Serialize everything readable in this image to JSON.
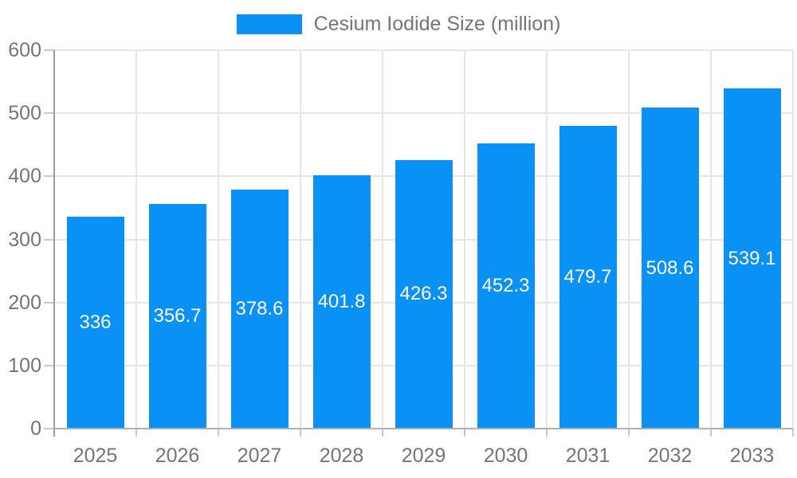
{
  "chart_data": {
    "type": "bar",
    "title": "",
    "xlabel": "",
    "ylabel": "",
    "categories": [
      "2025",
      "2026",
      "2027",
      "2028",
      "2029",
      "2030",
      "2031",
      "2032",
      "2033"
    ],
    "series": [
      {
        "name": "Cesium Iodide Size (million)",
        "values": [
          336,
          356.7,
          378.6,
          401.8,
          426.3,
          452.3,
          479.7,
          508.6,
          539.1
        ],
        "value_labels": [
          "336",
          "356.7",
          "378.6",
          "401.8",
          "426.3",
          "452.3",
          "479.7",
          "508.6",
          "539.1"
        ]
      }
    ],
    "ylim": [
      0,
      600
    ],
    "yticks": [
      0,
      100,
      200,
      300,
      400,
      500,
      600
    ],
    "ytick_labels": [
      "0",
      "100",
      "200",
      "300",
      "400",
      "500",
      "600"
    ],
    "grid": true,
    "legend_position": "top-center",
    "value_label_position": "inside-center",
    "colors": {
      "bar": "#0991f5",
      "bar_label_text": "#ffffff",
      "axis_text": "#757575",
      "gridline": "#e6e6e6",
      "y_axis_line": "#9e9e9e",
      "x_axis_line": "#b0b0b0",
      "tick_line": "#c9c9c9",
      "background": "#ffffff"
    }
  },
  "legend": {
    "items": [
      {
        "label": "Cesium Iodide Size (million)",
        "swatch_color": "#0991f5"
      }
    ]
  }
}
